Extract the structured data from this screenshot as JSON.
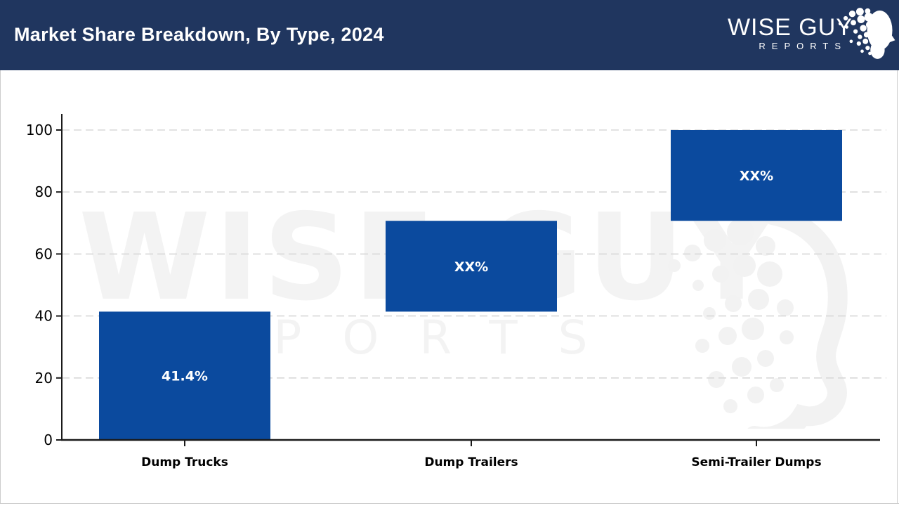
{
  "header": {
    "title": "Market Share Breakdown, By Type, 2024",
    "logo": {
      "name": "WISE GUY",
      "tagline": "REPORTS"
    }
  },
  "watermark": {
    "line1": "WISE GUY",
    "line2": "REPORTS"
  },
  "chart_data": {
    "type": "bar",
    "variant": "waterfall-stacked",
    "title": "Market Share Breakdown, By Type, 2024",
    "categories": [
      "Dump Trucks",
      "Dump Trailers",
      "Semi-Trailer Dumps"
    ],
    "segments": [
      {
        "category": "Dump Trucks",
        "start": 0,
        "end": 41.4,
        "label": "41.4%"
      },
      {
        "category": "Dump Trailers",
        "start": 41.4,
        "end": 70.7,
        "label": "XX%"
      },
      {
        "category": "Semi-Trailer Dumps",
        "start": 70.7,
        "end": 100,
        "label": "XX%"
      }
    ],
    "xlabel": "",
    "ylabel": "",
    "yticks": [
      0,
      20,
      40,
      60,
      80,
      100
    ],
    "ylim": [
      0,
      105
    ],
    "grid": "horizontal-dashed",
    "legend": "none",
    "bar_color": "#0b4a9e",
    "bar_label_color": "#ffffff",
    "axis_color": "#1a1a1a",
    "grid_color": "#d8d8d8",
    "tick_label_color": "#000000"
  },
  "colors": {
    "header_bg": "#20365f",
    "header_text": "#ffffff",
    "watermark": "#f3f3f3",
    "card_border": "#cccccc"
  }
}
